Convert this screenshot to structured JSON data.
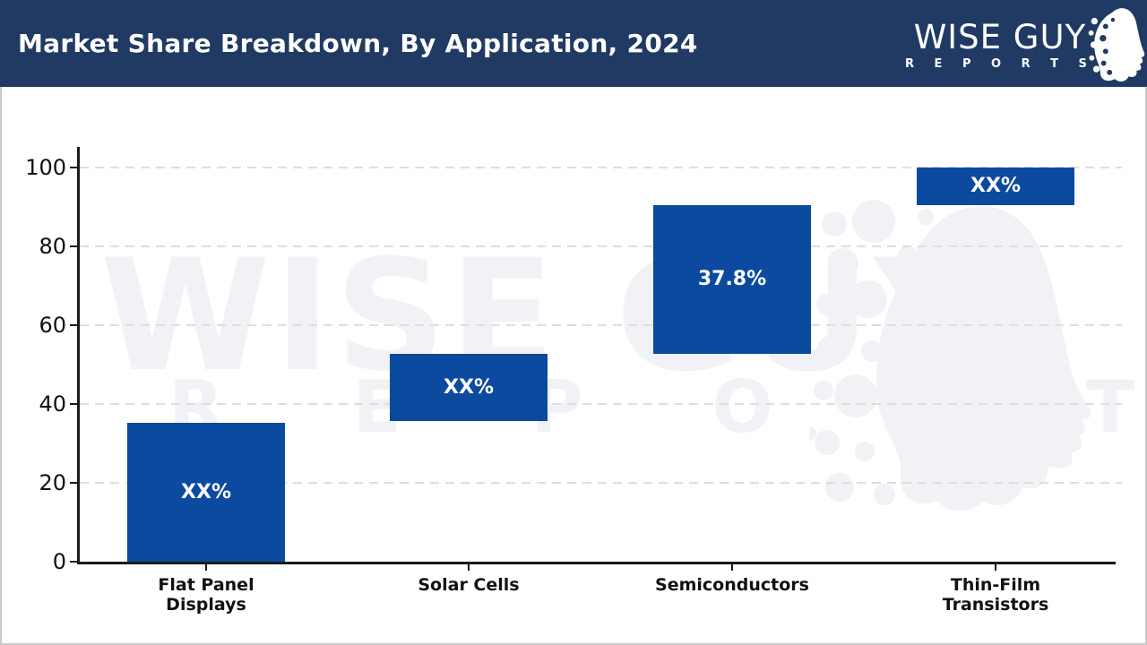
{
  "header": {
    "title": "Market Share Breakdown, By Application, 2024",
    "logo": {
      "primary": "WISE GUY",
      "secondary": "R E P O R T S"
    }
  },
  "watermark": {
    "primary": "WISE GUY",
    "secondary": "R E P O R T S"
  },
  "colors": {
    "header_bg": "#203a64",
    "bar": "#0b4a9e",
    "bar_label": "#ffffff",
    "axis": "#1a1a1a",
    "gridline": "#dedede",
    "watermark": "#f1f2f5",
    "body_border": "#c9c9c9"
  },
  "chart_data": {
    "type": "bar",
    "subtype": "floating-waterfall",
    "title": "Market Share Breakdown, By Application, 2024",
    "unit": "%",
    "categories": [
      "Flat Panel Displays",
      "Solar Cells",
      "Semiconductors",
      "Thin-Film Transistors"
    ],
    "category_label_lines": [
      [
        "Flat Panel",
        "Displays"
      ],
      [
        "Solar Cells"
      ],
      [
        "Semiconductors"
      ],
      [
        "Thin-Film",
        "Transistors"
      ]
    ],
    "segments": [
      {
        "category": "Flat Panel Displays",
        "start": 0,
        "end": 35.3,
        "label": "XX%"
      },
      {
        "category": "Solar Cells",
        "start": 35.7,
        "end": 52.7,
        "label": "XX%"
      },
      {
        "category": "Semiconductors",
        "start": 52.7,
        "end": 90.5,
        "label": "37.8%"
      },
      {
        "category": "Thin-Film Transistors",
        "start": 90.5,
        "end": 100,
        "label": "XX%"
      }
    ],
    "xlabel": "",
    "ylabel": "",
    "ylim": [
      0,
      105
    ],
    "yticks": [
      0,
      20,
      40,
      60,
      80,
      100
    ],
    "grid": "horizontal-dashed",
    "legend": "none"
  }
}
